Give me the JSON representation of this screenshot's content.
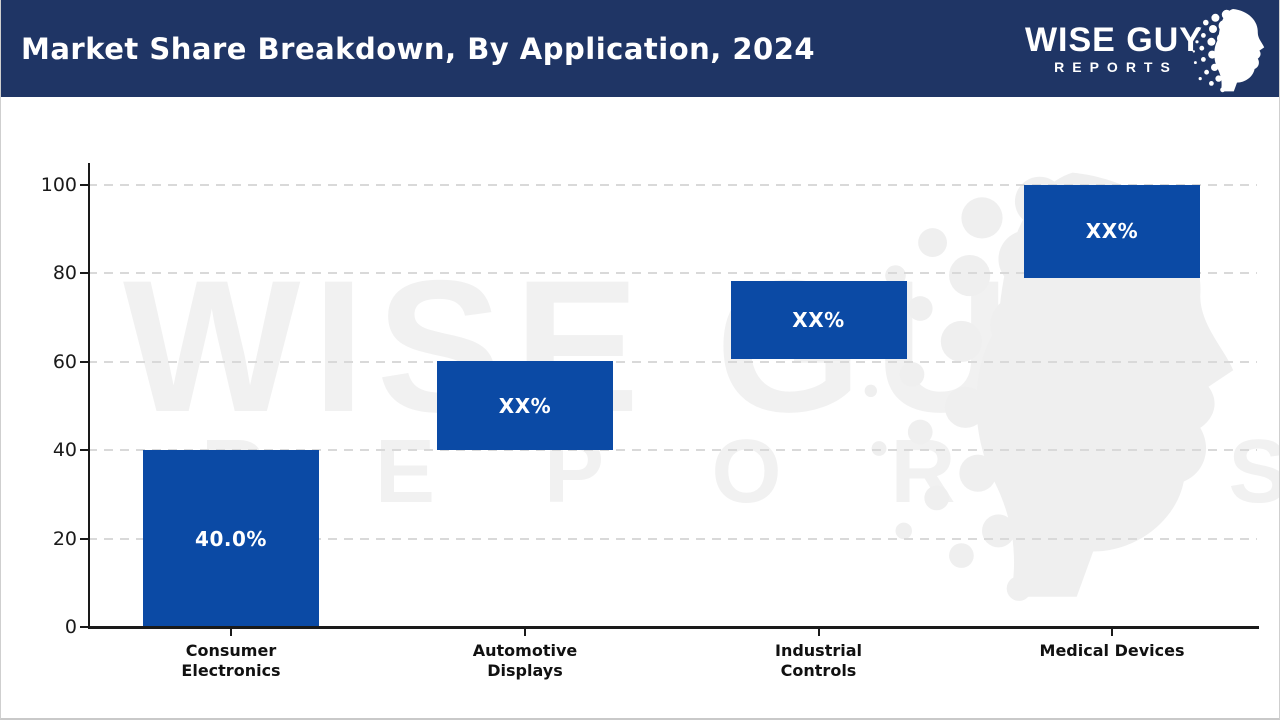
{
  "header": {
    "title": "Market Share Breakdown, By Application, 2024",
    "logo": {
      "line1": "WISE GUY",
      "line2": "REPORTS"
    }
  },
  "watermark": {
    "line1": "WISE GUY",
    "line2": "R E P O R T S"
  },
  "colors": {
    "header_bg": "#1F3565",
    "bar": "#0B4AA5",
    "grid": "#D9D9D9",
    "axis": "#1A1A1A",
    "bar_label": "#FFFFFF",
    "watermark": "#F1F1F1"
  },
  "chart_data": {
    "type": "bar",
    "subtype": "waterfall",
    "title": "Market Share Breakdown, By Application, 2024",
    "categories": [
      "Consumer Electronics",
      "Automotive Displays",
      "Industrial Controls",
      "Medical Devices"
    ],
    "category_lines": [
      [
        "Consumer",
        "Electronics"
      ],
      [
        "Automotive",
        "Displays"
      ],
      [
        "Industrial",
        "Controls"
      ],
      [
        "Medical Devices"
      ]
    ],
    "bars": [
      {
        "category": "Consumer Electronics",
        "start": 0,
        "end": 40,
        "label": "40.0%"
      },
      {
        "category": "Automotive Displays",
        "start": 40,
        "end": 60.2,
        "label": "XX%"
      },
      {
        "category": "Industrial Controls",
        "start": 60.7,
        "end": 78.3,
        "label": "XX%"
      },
      {
        "category": "Medical Devices",
        "start": 79,
        "end": 100,
        "label": "XX%"
      }
    ],
    "yticks": [
      0,
      20,
      40,
      60,
      80,
      100
    ],
    "ylim": [
      0,
      100
    ],
    "xlabel": "",
    "ylabel": "",
    "grid": "horizontal-dashed",
    "legend": "none"
  }
}
